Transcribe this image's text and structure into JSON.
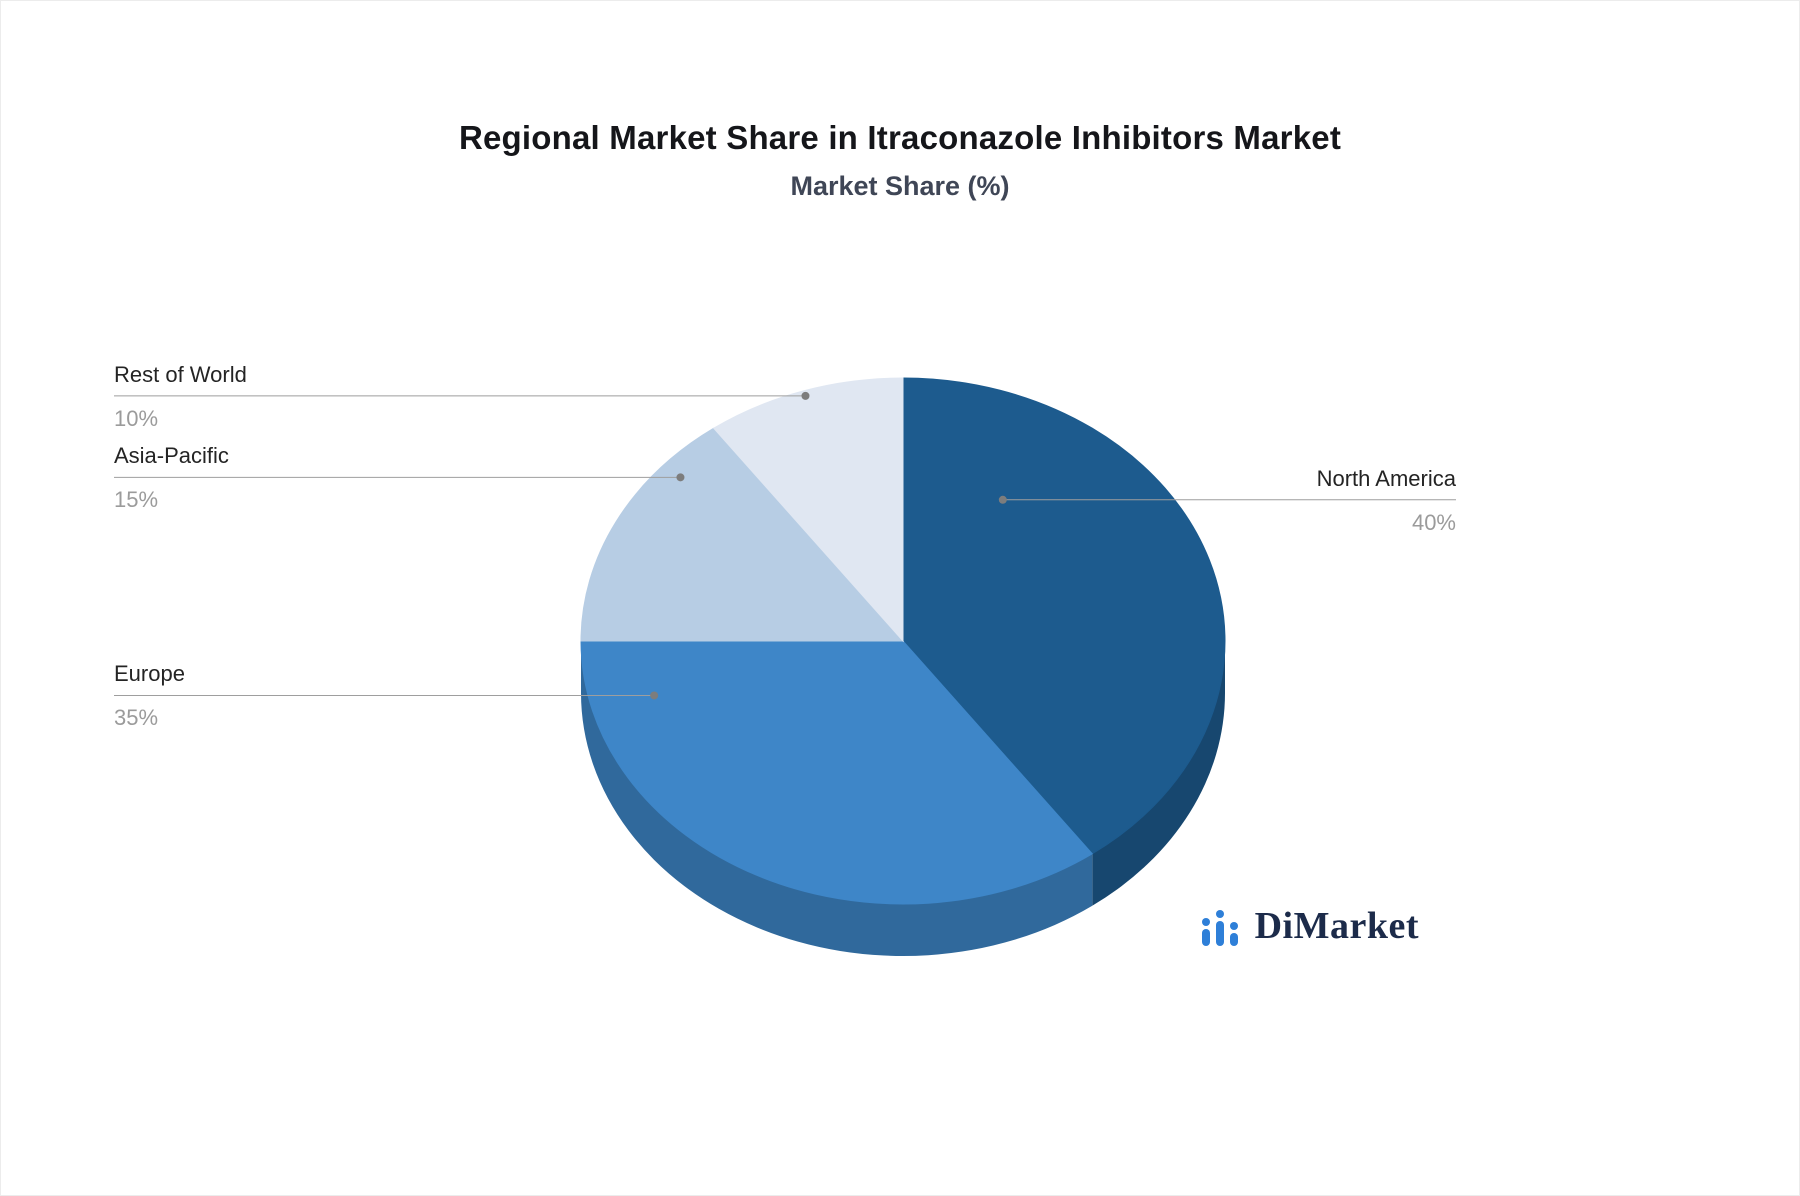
{
  "page": {
    "background": "#ffffff"
  },
  "header": {
    "title": "Regional Market Share in Itraconazole Inhibitors Market",
    "subtitle": "Market Share (%)"
  },
  "branding": {
    "logo_text": "DiMarket",
    "logo_icon": "bar-chart-icon",
    "logo_text_color": "#1c2b4a",
    "logo_icon_color": "#2e7fd8"
  },
  "chart_data": {
    "type": "pie",
    "style": "3d",
    "title": "Regional Market Share in Itraconazole Inhibitors Market",
    "subtitle": "Market Share (%)",
    "unit": "%",
    "categories": [
      "North America",
      "Europe",
      "Asia-Pacific",
      "Rest of World"
    ],
    "values": [
      40,
      35,
      15,
      10
    ],
    "colors": [
      "#1d5b8e",
      "#3e86c8",
      "#b7cde4",
      "#e0e7f2"
    ],
    "label_line_color": "#9e9e9e",
    "leader_dot_color": "#7d7d7d",
    "label_color": "#242424",
    "value_color": "#9b9b9b",
    "legend_position": "none",
    "data_labels": "leader-lines",
    "start_angle_deg": 0,
    "direction": "clockwise"
  }
}
